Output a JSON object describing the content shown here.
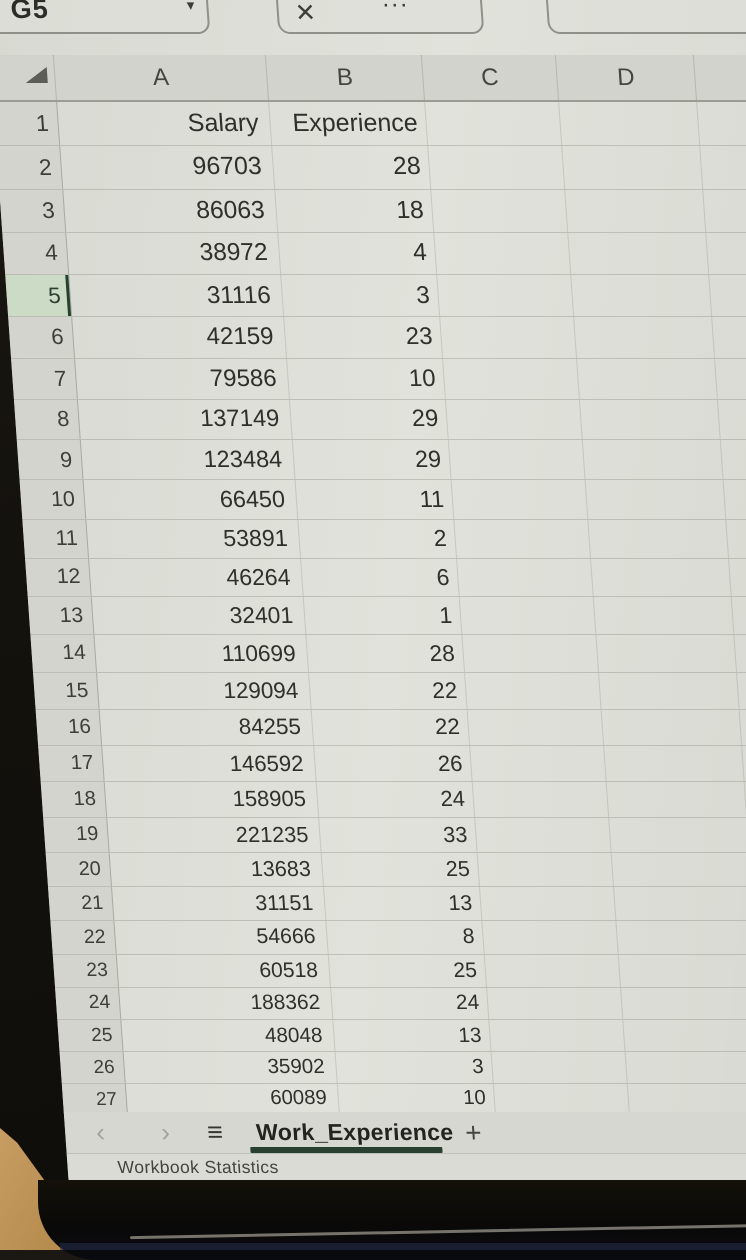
{
  "name_box": {
    "value": "G5",
    "caret_icon": "▾"
  },
  "toolbar": {
    "cancel_icon": "✕",
    "more_icon": "∙∙∙"
  },
  "grid": {
    "columns": [
      "A",
      "B",
      "C",
      "D"
    ],
    "selected_row": 5,
    "rows": [
      {
        "n": "1",
        "a": "Salary",
        "b": "Experience"
      },
      {
        "n": "2",
        "a": "96703",
        "b": "28"
      },
      {
        "n": "3",
        "a": "86063",
        "b": "18"
      },
      {
        "n": "4",
        "a": "38972",
        "b": "4"
      },
      {
        "n": "5",
        "a": "31116",
        "b": "3"
      },
      {
        "n": "6",
        "a": "42159",
        "b": "23"
      },
      {
        "n": "7",
        "a": "79586",
        "b": "10"
      },
      {
        "n": "8",
        "a": "137149",
        "b": "29"
      },
      {
        "n": "9",
        "a": "123484",
        "b": "29"
      },
      {
        "n": "10",
        "a": "66450",
        "b": "11"
      },
      {
        "n": "11",
        "a": "53891",
        "b": "2"
      },
      {
        "n": "12",
        "a": "46264",
        "b": "6"
      },
      {
        "n": "13",
        "a": "32401",
        "b": "1"
      },
      {
        "n": "14",
        "a": "110699",
        "b": "28"
      },
      {
        "n": "15",
        "a": "129094",
        "b": "22"
      },
      {
        "n": "16",
        "a": "84255",
        "b": "22"
      },
      {
        "n": "17",
        "a": "146592",
        "b": "26"
      },
      {
        "n": "18",
        "a": "158905",
        "b": "24"
      },
      {
        "n": "19",
        "a": "221235",
        "b": "33"
      },
      {
        "n": "20",
        "a": "13683",
        "b": "25"
      },
      {
        "n": "21",
        "a": "31151",
        "b": "13"
      },
      {
        "n": "22",
        "a": "54666",
        "b": "8"
      },
      {
        "n": "23",
        "a": "60518",
        "b": "25"
      },
      {
        "n": "24",
        "a": "188362",
        "b": "24"
      },
      {
        "n": "25",
        "a": "48048",
        "b": "13"
      },
      {
        "n": "26",
        "a": "35902",
        "b": "3"
      },
      {
        "n": "27",
        "a": "60089",
        "b": "10"
      }
    ]
  },
  "sheet_bar": {
    "prev_icon": "‹",
    "next_icon": "›",
    "menu_icon": "≡",
    "tab_label": "Work_Experience",
    "add_icon": "+",
    "tab_accent_color": "#28402f"
  },
  "status_bar": {
    "text": "Workbook Statistics"
  },
  "colors": {
    "sheet_bg": "#dedfd8",
    "header_bg": "#d2d3cc",
    "selected_row_bg": "#cbdbc6",
    "selection_accent": "#24432f",
    "text": "#2f302b"
  }
}
